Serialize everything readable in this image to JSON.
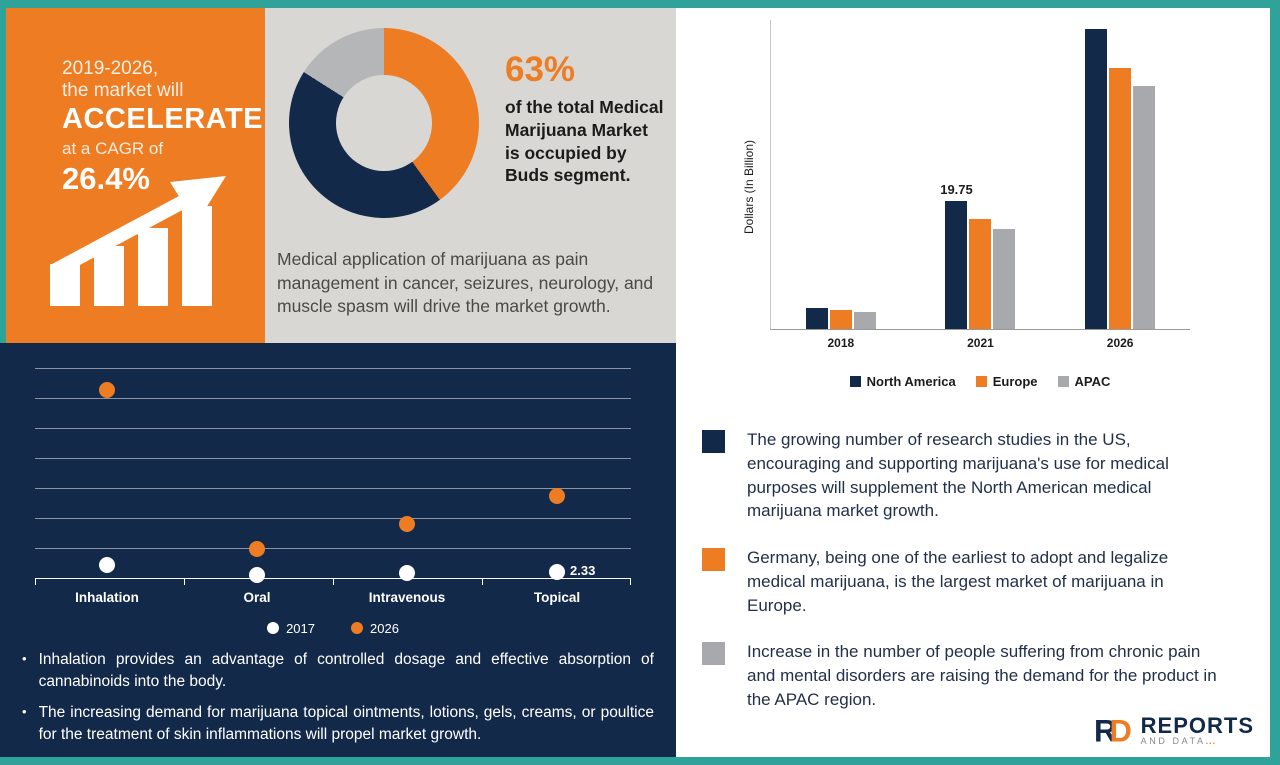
{
  "colors": {
    "frame_teal": "#2fa39a",
    "orange": "#ee7c22",
    "navy": "#13294a",
    "panel_gray": "#d8d7d3",
    "bar_gray": "#a7a9ac",
    "white": "#ffffff"
  },
  "promo_box": {
    "line1": "2019-2026,",
    "line2": "the market will",
    "line3": "ACCELERATE",
    "line4": "at a CAGR of",
    "line5": "26.4%"
  },
  "donut_panel": {
    "stat_value": "63%",
    "stat_caption": "of the total Medical Marijuana Market is occupied by Buds segment.",
    "paragraph": "Medical application of marijuana as pain management in cancer, seizures, neurology, and muscle spasm will drive the market growth."
  },
  "dot_panel": {
    "bullets": [
      "Inhalation provides an advantage of controlled dosage and effective absorption of cannabinoids into the body.",
      "The increasing demand for marijuana topical ointments, lotions, gels, creams, or poultice for the treatment of skin inflammations will propel market growth."
    ]
  },
  "right_panel": {
    "bullets": [
      {
        "color": "#13294a",
        "text": "The growing number of research studies in the US, encouraging and supporting marijuana's use for medical purposes will supplement the North American medical marijuana market growth."
      },
      {
        "color": "#ee7c22",
        "text": "Germany, being one of the earliest to adopt and legalize medical marijuana, is the largest market of marijuana in Europe."
      },
      {
        "color": "#a7a9ac",
        "text": "Increase in the number of people suffering from chronic pain and mental disorders are raising the demand for the product in the APAC region."
      }
    ],
    "logo": {
      "name": "REPORTS",
      "sub": "AND DATA",
      "dots": "..."
    }
  },
  "chart_data": [
    {
      "type": "bar",
      "categories": [
        "2018",
        "2021",
        "2026"
      ],
      "series": [
        {
          "name": "North America",
          "color": "#13294a",
          "values": [
            3.3,
            19.75,
            46.4
          ]
        },
        {
          "name": "Europe",
          "color": "#ee7c22",
          "values": [
            3.0,
            17.0,
            40.4
          ]
        },
        {
          "name": "APAC",
          "color": "#a7a9ac",
          "values": [
            2.7,
            15.5,
            37.7
          ]
        }
      ],
      "ylabel": "Dollars (In Billion)",
      "ylim": [
        0,
        48
      ],
      "grid": false,
      "legend_position": "bottom",
      "annotations": [
        {
          "series": "North America",
          "category": "2021",
          "text": "19.75"
        }
      ]
    },
    {
      "type": "scatter",
      "categories": [
        "Inhalation",
        "Oral",
        "Intravenous",
        "Topical"
      ],
      "series": [
        {
          "name": "2017",
          "color": "#ffffff",
          "values": [
            5.0,
            1.2,
            2.0,
            2.33
          ]
        },
        {
          "name": "2026",
          "color": "#ee7c22",
          "values": [
            73.0,
            11.3,
            21.0,
            31.8
          ]
        }
      ],
      "ylim": [
        0,
        81.5
      ],
      "grid": true,
      "legend_position": "bottom",
      "annotations": [
        {
          "series": "2017",
          "category": "Topical",
          "text": "2.33"
        }
      ]
    },
    {
      "type": "pie",
      "donut": true,
      "title": "63% of the total Medical Marijuana Market is occupied by Buds segment.",
      "segments": [
        {
          "name": "orange-segment",
          "color": "#ee7c22",
          "value": 40
        },
        {
          "name": "navy-segment",
          "color": "#13294a",
          "value": 44
        },
        {
          "name": "gray-segment",
          "color": "#b4b6b8",
          "value": 16
        }
      ]
    }
  ]
}
